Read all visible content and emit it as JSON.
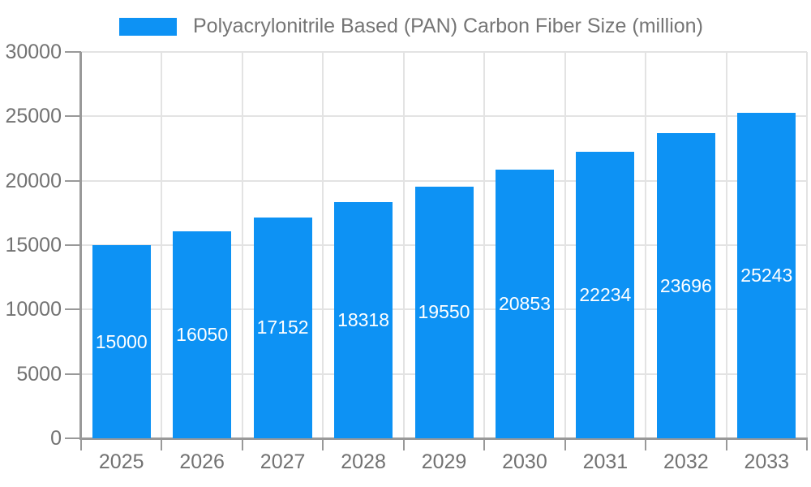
{
  "chart_data": {
    "type": "bar",
    "title": "Polyacrylonitrile Based (PAN) Carbon Fiber Size (million)",
    "categories": [
      "2025",
      "2026",
      "2027",
      "2028",
      "2029",
      "2030",
      "2031",
      "2032",
      "2033"
    ],
    "values": [
      15000,
      16050,
      17152,
      18318,
      19550,
      20853,
      22234,
      23696,
      25243
    ],
    "bar_labels": [
      "15000",
      "16050",
      "17152",
      "18318",
      "19550",
      "20853",
      "22234",
      "23696",
      "25243"
    ],
    "xlabel": "",
    "ylabel": "",
    "ylim": [
      0,
      30000
    ],
    "ytick_step": 5000,
    "ytick_labels": [
      "0",
      "5000",
      "10000",
      "15000",
      "20000",
      "25000",
      "30000"
    ],
    "grid": "on",
    "legend_position": "top",
    "colors": {
      "bar": "#0d92f4",
      "axis": "#999999",
      "grid": "#e3e3e3",
      "tick_text": "#727272",
      "legend_text": "#757575",
      "bar_label_text": "#ffffff",
      "background": "#ffffff"
    }
  },
  "legend": {
    "label": "Polyacrylonitrile Based (PAN) Carbon Fiber Size (million)"
  }
}
